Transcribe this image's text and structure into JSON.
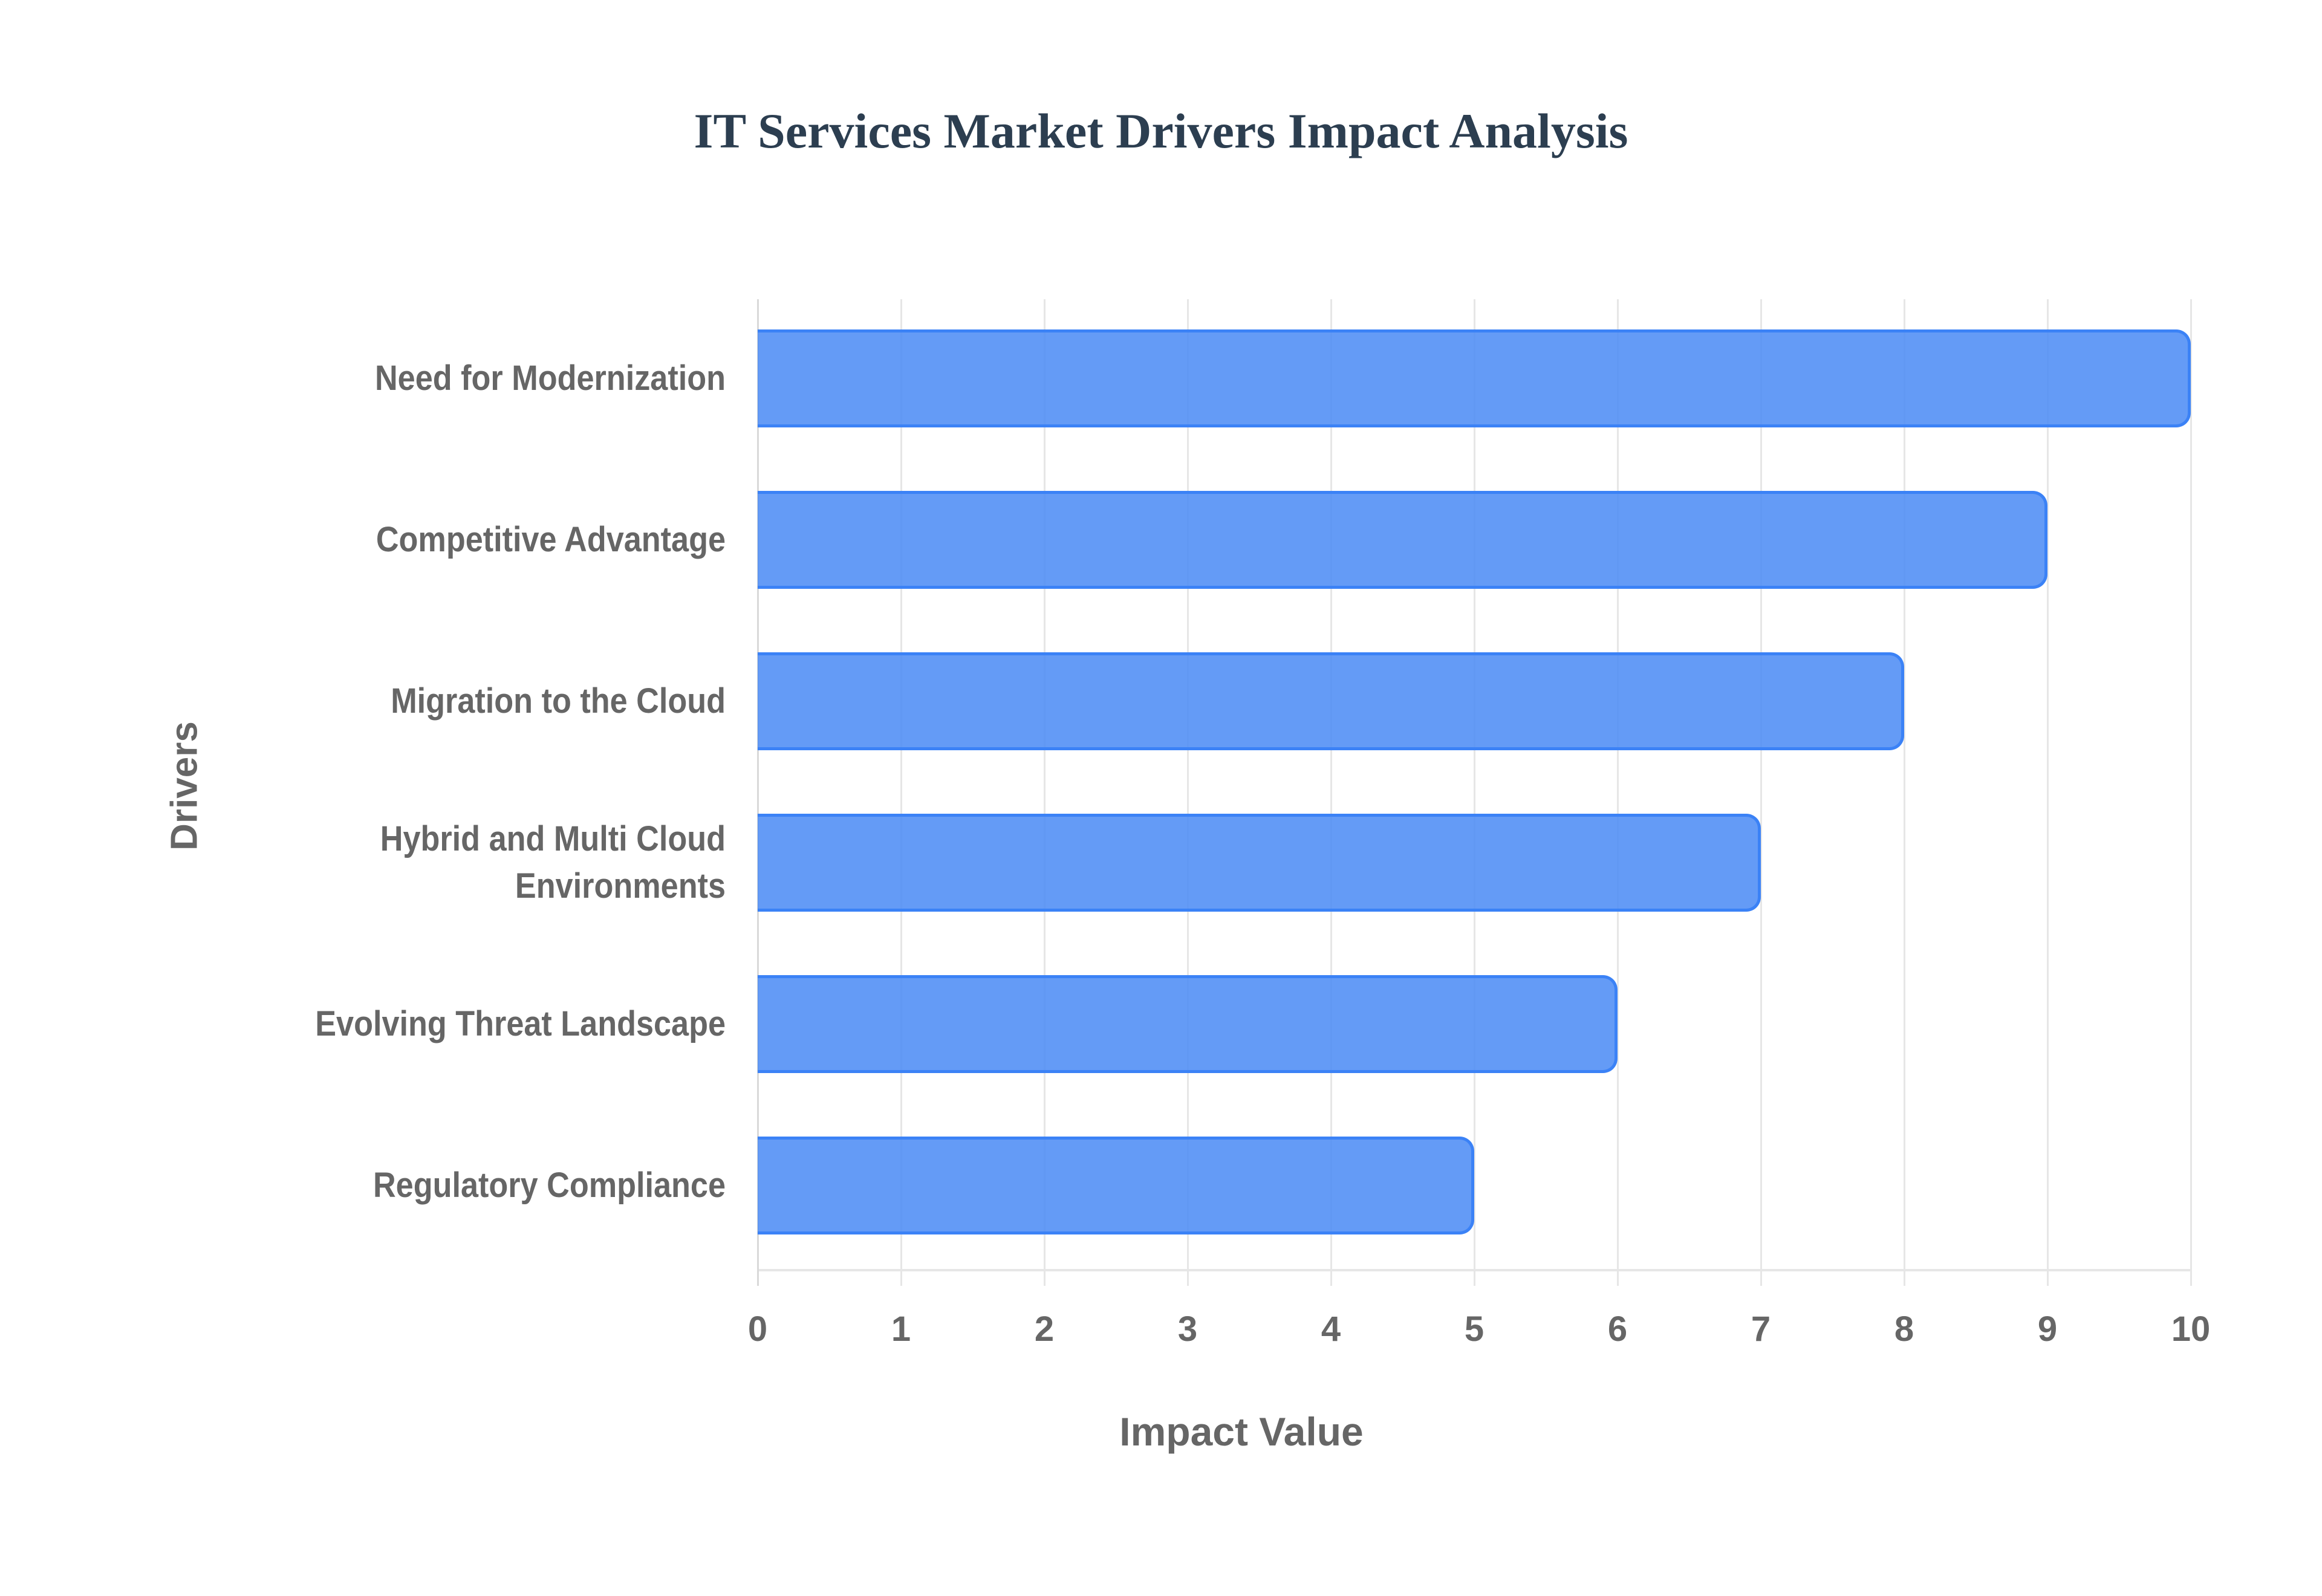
{
  "title": "IT Services Market Drivers Impact Analysis",
  "colors": {
    "bar_fill": "#6399f7",
    "bar_border": "#3b82f6",
    "text": "#666666",
    "title": "#2c3e50",
    "grid": "#e6e6e6"
  },
  "chart_data": {
    "type": "bar",
    "orientation": "horizontal",
    "title": "IT Services Market Drivers Impact Analysis",
    "xlabel": "Impact Value",
    "ylabel": "Drivers",
    "categories": [
      "Need for Modernization",
      "Competitive Advantage",
      "Migration to the Cloud",
      "Hybrid and Multi Cloud Environments",
      "Evolving Threat Landscape",
      "Regulatory Compliance"
    ],
    "values": [
      10,
      9,
      8,
      7,
      6,
      5
    ],
    "xlim": [
      0,
      10
    ],
    "xticks": [
      "0",
      "1",
      "2",
      "3",
      "4",
      "5",
      "6",
      "7",
      "8",
      "9",
      "10"
    ],
    "grid": true,
    "legend": false
  },
  "labels": {
    "row0": [
      "Need for Modernization"
    ],
    "row1": [
      "Competitive Advantage"
    ],
    "row2": [
      "Migration to the Cloud"
    ],
    "row3": [
      "Hybrid and Multi Cloud",
      "Environments"
    ],
    "row4": [
      "Evolving Threat Landscape"
    ],
    "row5": [
      "Regulatory Compliance"
    ]
  }
}
